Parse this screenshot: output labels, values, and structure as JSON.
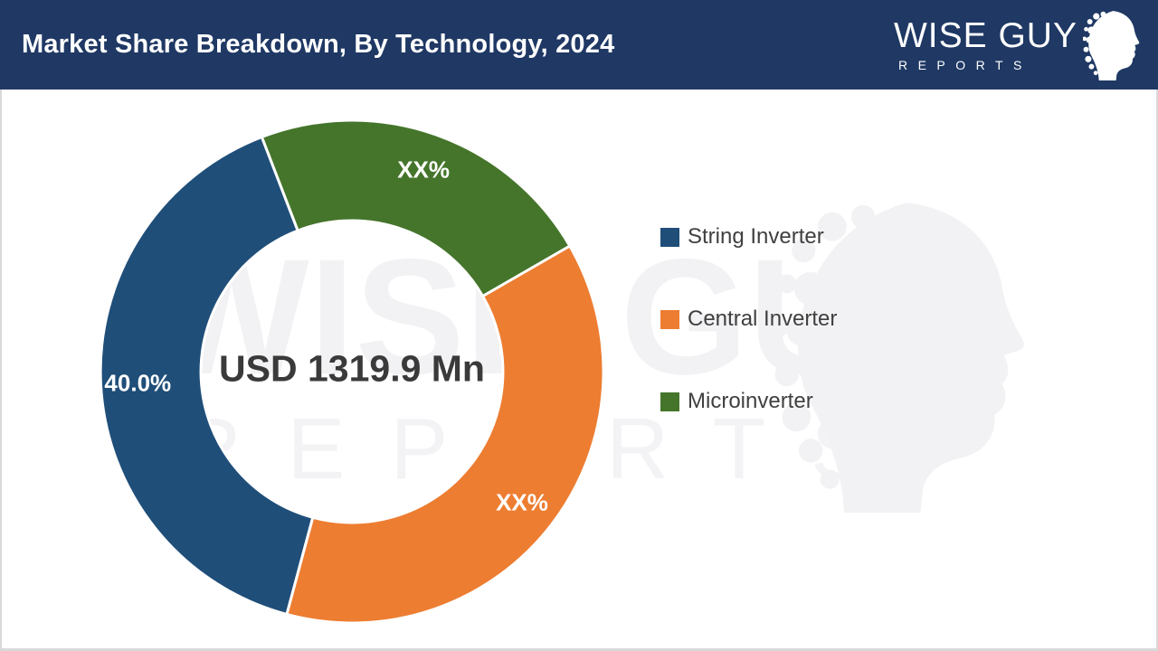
{
  "header": {
    "title": "Market Share Breakdown, By Technology, 2024"
  },
  "logo": {
    "name": "WISE GUY REPORTS",
    "line1": "WISE GUY",
    "line2": "REPORTS"
  },
  "watermark": {
    "line1": "WISE GUY",
    "line2": "REPORTS"
  },
  "chart_data": {
    "type": "donut",
    "title": "Market Share Breakdown, By Technology, 2024",
    "center_label": "USD 1319.9 Mn",
    "total_value_text": "USD 1319.9 Mn",
    "start_angle_deg": 111,
    "direction": "counterclockwise",
    "legend_position": "right",
    "segments": [
      {
        "name": "String Inverter",
        "label": "40.0%",
        "value_pct": 40.0,
        "label_is_placeholder": false,
        "color": "#1F4E79"
      },
      {
        "name": "Central Inverter",
        "label": "XX%",
        "value_pct": 37.5,
        "label_is_placeholder": true,
        "color": "#ED7D31"
      },
      {
        "name": "Microinverter",
        "label": "XX%",
        "value_pct": 22.5,
        "label_is_placeholder": true,
        "color": "#45752B"
      }
    ]
  },
  "colors": {
    "header_bg": "#1F3864",
    "segment_blue": "#1F4E79",
    "segment_orange": "#ED7D31",
    "segment_green": "#45752B",
    "text_dark": "#3A3A3A",
    "legend_text": "#404040",
    "watermark": "#F2F2F4",
    "page_border": "#D9D9D9"
  }
}
